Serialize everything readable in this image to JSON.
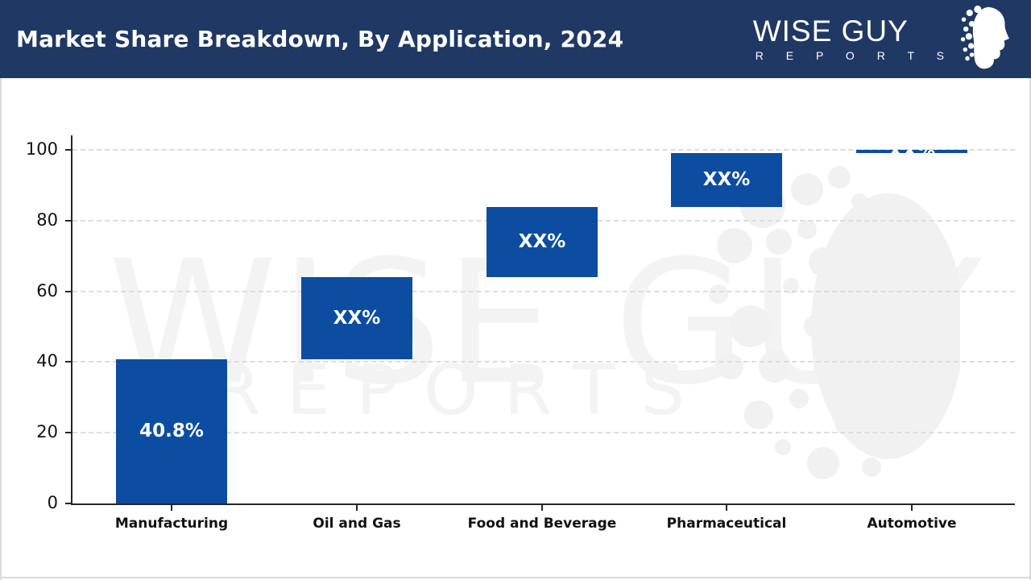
{
  "header": {
    "title": "Market Share Breakdown, By Application, 2024",
    "logo": {
      "name": "WISE GUY",
      "sub": "R E P O R T S"
    }
  },
  "watermark": {
    "line1": "WISE GUY",
    "line2": "REPORTS"
  },
  "colors": {
    "header_bg": "#1f3864",
    "bar": "#0d4da1",
    "bar_label": "#ffffff",
    "axis": "#262626",
    "grid": "#dcdcdc",
    "text": "#111111",
    "watermark": "#f2f2f2"
  },
  "chart_data": {
    "type": "bar",
    "subtype": "waterfall",
    "title": "Market Share Breakdown, By Application, 2024",
    "categories": [
      "Manufacturing",
      "Oil and Gas",
      "Food and Beverage",
      "Pharmaceutical",
      "Automotive"
    ],
    "segments": [
      {
        "category": "Manufacturing",
        "start": 0,
        "end": 40.8,
        "label": "40.8%"
      },
      {
        "category": "Oil and Gas",
        "start": 40.8,
        "end": 64.1,
        "label": "XX%"
      },
      {
        "category": "Food and Beverage",
        "start": 64.1,
        "end": 83.9,
        "label": "XX%"
      },
      {
        "category": "Pharmaceutical",
        "start": 83.9,
        "end": 99.1,
        "label": "XX%"
      },
      {
        "category": "Automotive",
        "start": 99.1,
        "end": 100,
        "label": "XX%"
      }
    ],
    "units": "percent",
    "xlabel": "",
    "ylabel": "",
    "ylim": [
      0,
      100
    ],
    "yticks": [
      0,
      20,
      40,
      60,
      80,
      100
    ],
    "grid": "dashed-horizontal",
    "legend": "none"
  }
}
